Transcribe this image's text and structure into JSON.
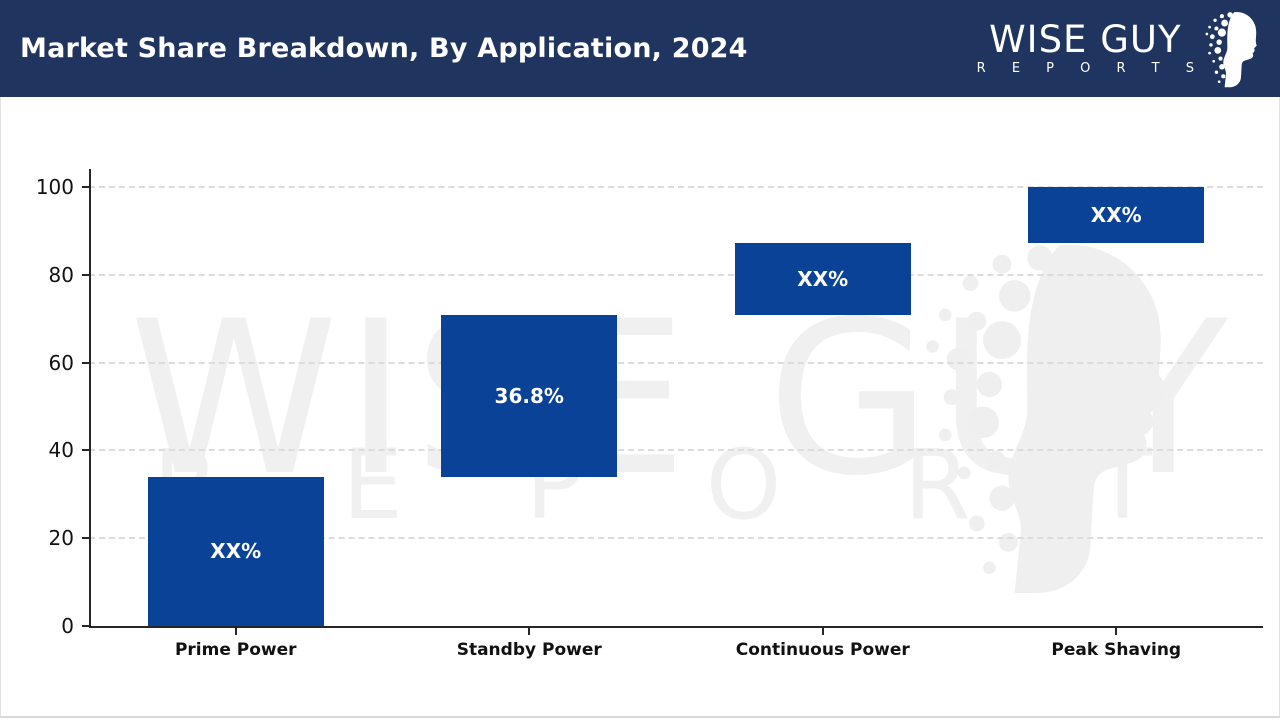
{
  "header": {
    "title": "Market Share Breakdown, By Application, 2024",
    "logo_line1": "WISE GUY",
    "logo_line2": "R E P O R T S",
    "bg_color": "#203460"
  },
  "watermark": {
    "line1": "WISE GUY",
    "line2": "R E P O R T S"
  },
  "chart_data": {
    "type": "bar",
    "subtype": "floating-waterfall",
    "title": "Market Share Breakdown, By Application, 2024",
    "categories": [
      "Prime Power",
      "Standby Power",
      "Continuous Power",
      "Peak Shaving"
    ],
    "segments": [
      {
        "category": "Prime Power",
        "start": 0,
        "end": 34,
        "value_label": "XX%"
      },
      {
        "category": "Standby Power",
        "start": 34,
        "end": 70.8,
        "value": 36.8,
        "value_label": "36.8%"
      },
      {
        "category": "Continuous Power",
        "start": 70.8,
        "end": 87.2,
        "value_label": "XX%"
      },
      {
        "category": "Peak Shaving",
        "start": 87.2,
        "end": 100,
        "value_label": "XX%"
      }
    ],
    "yticks": [
      0,
      20,
      40,
      60,
      80,
      100
    ],
    "ylim": [
      0,
      104
    ],
    "xlabel": "",
    "ylabel": "",
    "legend": "none",
    "grid": "horizontal-dashed",
    "bar_color": "#0a4298",
    "bar_label_color": "#ffffff",
    "axis_color": "#262626",
    "grid_color": "#dcdcdc"
  }
}
